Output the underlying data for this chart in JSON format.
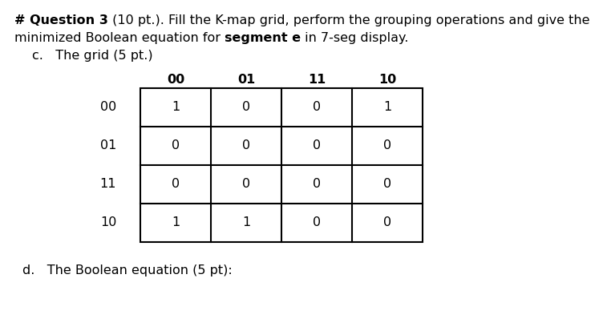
{
  "title_line1_bold": "# Question 3",
  "title_line1_normal": " (10 pt.). Fill the K-map grid, perform the grouping operations and give the",
  "title_line2_normal1": "minimized Boolean equation for ",
  "title_line2_bold": "segment e",
  "title_line2_normal2": " in 7-seg display.",
  "subtitle": "c.   The grid (5 pt.)",
  "col_headers": [
    "00",
    "01",
    "11",
    "10"
  ],
  "row_headers": [
    "00",
    "01",
    "11",
    "10"
  ],
  "grid_values": [
    [
      1,
      0,
      0,
      1
    ],
    [
      0,
      0,
      0,
      0
    ],
    [
      0,
      0,
      0,
      0
    ],
    [
      1,
      1,
      0,
      0
    ]
  ],
  "footer": "d.   The Boolean equation (5 pt):",
  "background_color": "#ffffff",
  "text_color": "#000000",
  "font_size": 11.5
}
